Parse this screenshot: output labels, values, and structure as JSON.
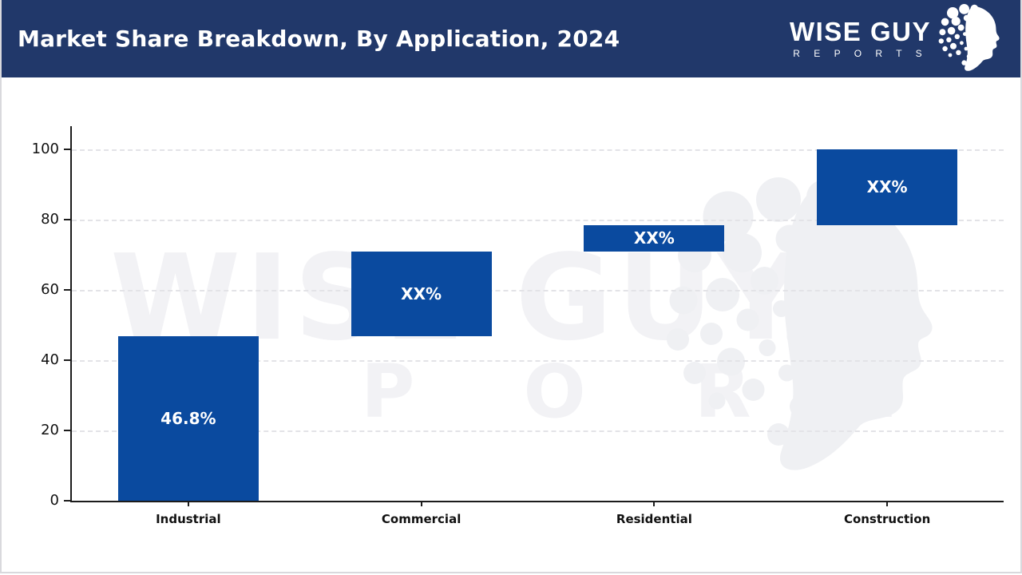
{
  "header": {
    "title": "Market Share Breakdown, By Application, 2024",
    "bg_color": "#21386a",
    "logo": {
      "brand": "WISE GUY",
      "sub": "R E P O R T S"
    }
  },
  "watermark": {
    "line1": "WISE GUY",
    "line2": "P O R T S"
  },
  "chart_data": {
    "type": "bar",
    "subtype": "waterfall",
    "title": "Market Share Breakdown, By Application, 2024",
    "categories": [
      "Industrial",
      "Commercial",
      "Residential",
      "Construction"
    ],
    "bars": [
      {
        "category": "Industrial",
        "start": 0,
        "end": 46.8,
        "label": "46.8%"
      },
      {
        "category": "Commercial",
        "start": 46.8,
        "end": 70.9,
        "label": "XX%"
      },
      {
        "category": "Residential",
        "start": 70.9,
        "end": 78.5,
        "label": "XX%"
      },
      {
        "category": "Construction",
        "start": 78.5,
        "end": 100,
        "label": "XX%"
      }
    ],
    "xlabel": "",
    "ylabel": "",
    "ylim": [
      0,
      106.6
    ],
    "yticks": [
      0,
      20,
      40,
      60,
      80,
      100
    ],
    "grid": true,
    "grid_style": "dashed",
    "legend": false,
    "bar_color": "#0a4a9f",
    "bar_label_color": "#ffffff",
    "axis_color": "#1c1c1c"
  }
}
